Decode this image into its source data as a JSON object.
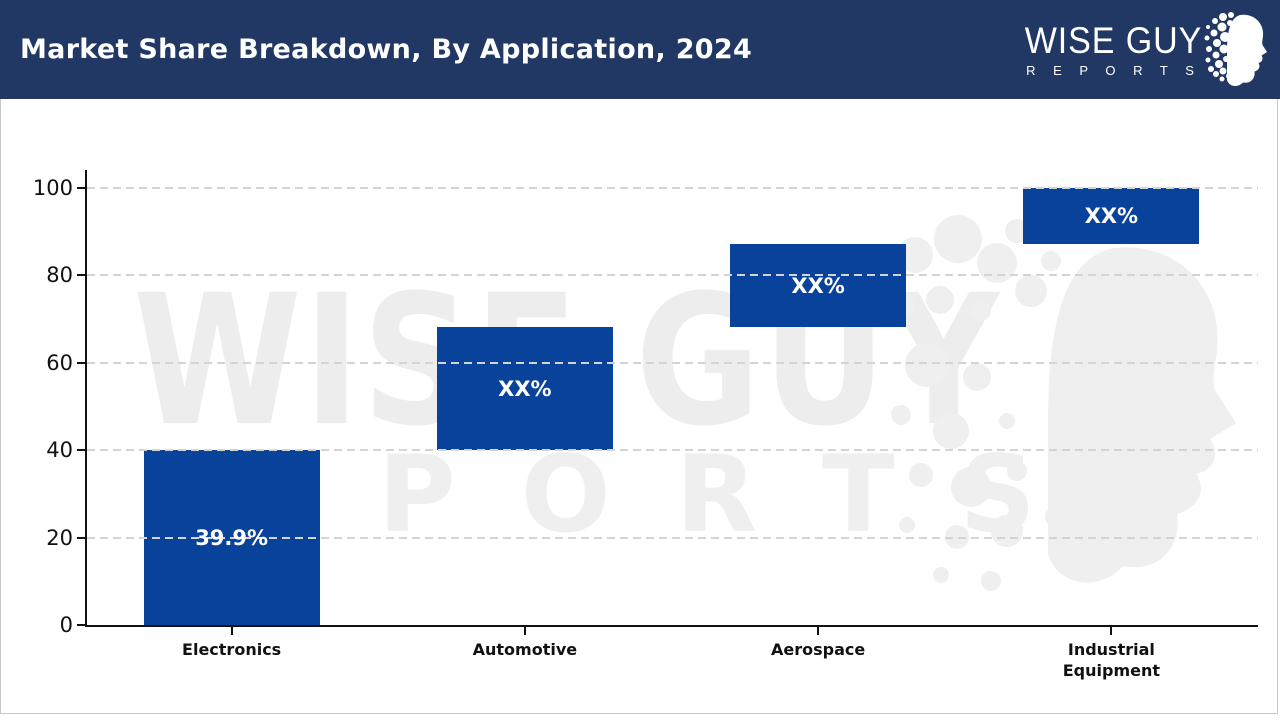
{
  "header": {
    "title": "Market Share Breakdown, By Application, 2024",
    "bg_color": "#213864",
    "logo": {
      "wordmark": "WISE GUY",
      "subtext": "R E P O R T S",
      "face_icon": "dotted-head-profile"
    }
  },
  "watermark": {
    "line1": "WISE GUY",
    "line2": "P O R T S",
    "face_icon": "dotted-head-profile"
  },
  "chart_data": {
    "type": "bar",
    "subtype": "waterfall",
    "title": "Market Share Breakdown, By Application, 2024",
    "xlabel": "",
    "ylabel": "",
    "ylim": [
      0,
      100
    ],
    "yticks": [
      0,
      20,
      40,
      60,
      80,
      100
    ],
    "grid": "horizontal-dashed",
    "legend": "none",
    "categories": [
      "Electronics",
      "Automotive",
      "Aerospace",
      "Industrial Equipment"
    ],
    "series": [
      {
        "name": "Market Share",
        "segments": [
          {
            "category": "Electronics",
            "start": 0,
            "end": 39.9,
            "value": 39.9,
            "label": "39.9%"
          },
          {
            "category": "Automotive",
            "start": 39.9,
            "end": 68.1,
            "value": 28.2,
            "label": "XX%"
          },
          {
            "category": "Aerospace",
            "start": 68.1,
            "end": 87.1,
            "value": 19.0,
            "label": "XX%"
          },
          {
            "category": "Industrial Equipment",
            "start": 87.1,
            "end": 100,
            "value": 12.9,
            "label": "XX%"
          }
        ]
      }
    ],
    "bar_color": "#09429a",
    "bar_label_color": "#ffffff",
    "axis_color": "#111111",
    "gridline_color": "#d4d4d4"
  }
}
